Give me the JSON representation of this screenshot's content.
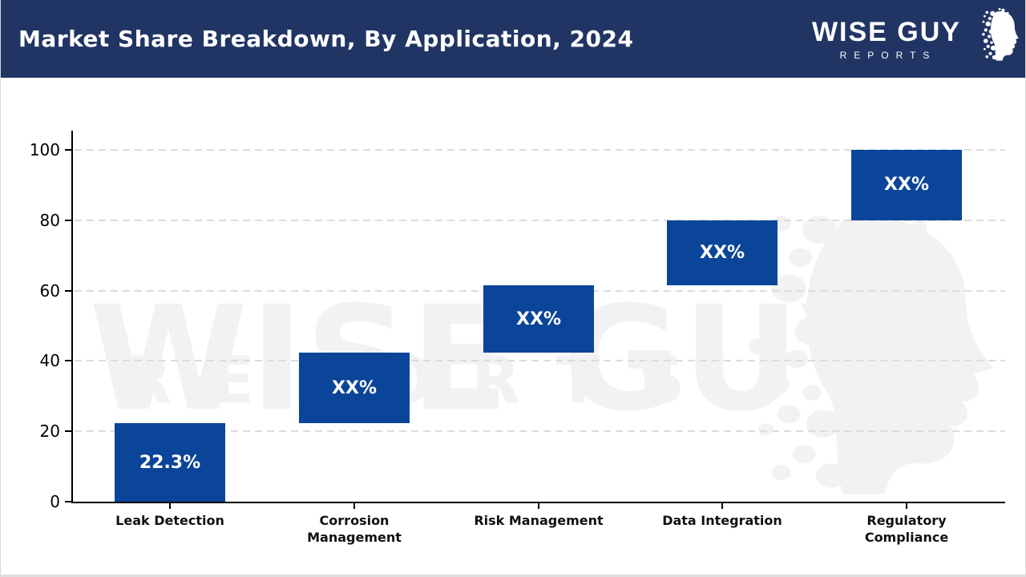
{
  "header": {
    "title": "Market Share Breakdown, By Application, 2024",
    "logo": {
      "primary": "WISE GUY",
      "secondary": "REPORTS"
    }
  },
  "watermark": {
    "primary": "WISE GUY",
    "secondary": "REPORTS"
  },
  "colors": {
    "header_bg": "#213564",
    "bar_fill": "#0b4599",
    "bar_label_text": "#ffffff",
    "grid_line": "#dcdcdc",
    "axis_line": "#000000",
    "tick_label": "#000000",
    "category_label": "#111111",
    "watermark": "#f2f2f4",
    "page_border": "#d9d9d9"
  },
  "chart_data": {
    "type": "bar",
    "subtype": "waterfall",
    "title": "Market Share Breakdown, By Application, 2024",
    "categories": [
      "Leak Detection",
      "Corrosion Management",
      "Risk Management",
      "Data Integration",
      "Regulatory Compliance"
    ],
    "bars": [
      {
        "category": "Leak Detection",
        "category_lines": [
          "Leak Detection"
        ],
        "start": 0,
        "end": 22.3,
        "label": "22.3%"
      },
      {
        "category": "Corrosion Management",
        "category_lines": [
          "Corrosion",
          "Management"
        ],
        "start": 22.3,
        "end": 42.3,
        "label": "XX%"
      },
      {
        "category": "Risk Management",
        "category_lines": [
          "Risk Management"
        ],
        "start": 42.3,
        "end": 61.5,
        "label": "XX%"
      },
      {
        "category": "Data Integration",
        "category_lines": [
          "Data Integration"
        ],
        "start": 61.5,
        "end": 80.0,
        "label": "XX%"
      },
      {
        "category": "Regulatory Compliance",
        "category_lines": [
          "Regulatory",
          "Compliance"
        ],
        "start": 80.0,
        "end": 100.0,
        "label": "XX%"
      }
    ],
    "xlabel": "",
    "ylabel": "",
    "ylim": [
      0,
      100
    ],
    "yticks": [
      0,
      20,
      40,
      60,
      80,
      100
    ],
    "grid": "horizontal-dashed",
    "legend": "none"
  }
}
